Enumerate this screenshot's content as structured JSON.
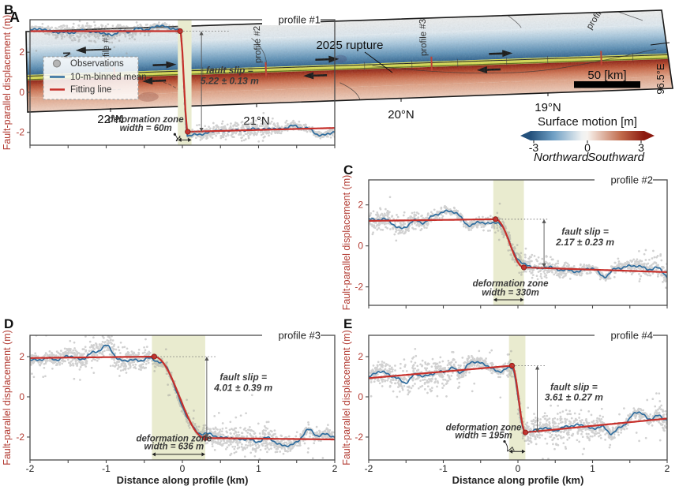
{
  "map": {
    "panel_label": "A",
    "north_arrow_label": "N",
    "rupture_label": "2025 rupture",
    "profile_labels": [
      "profile #1",
      "profile #2",
      "profile #3",
      "profile #4"
    ],
    "latitude_labels": [
      "22°N",
      "21°N",
      "20°N",
      "19°N"
    ],
    "longitude_label": "96.5°E",
    "scalebar_label": "50 [km]",
    "colorbar": {
      "title": "Surface motion [m]",
      "tick_labels": [
        "-3",
        "0",
        "3"
      ],
      "left_caption": "Northward",
      "right_caption": "Southward",
      "negative_color": "#24517c",
      "positive_color": "#8c1a10"
    }
  },
  "axes": {
    "ylabel": "Fault-parallel displacement (m)",
    "xlabel": "Distance along profile (km)"
  },
  "legend": {
    "items": [
      {
        "marker": "circle",
        "label": "Observations"
      },
      {
        "marker": "line-blue",
        "label": "10-m-binned mean"
      },
      {
        "marker": "line-red",
        "label": "Fitting line"
      }
    ]
  },
  "colors": {
    "fit_line": "#c62f2a",
    "binned_line": "#2f6d9e",
    "observations": "#9a9a9a",
    "zone_band": "#e9ebcf",
    "axis_red": "#b23b32",
    "frame": "#4a4a4a",
    "annotation_text": "#3a3a3a",
    "rupture_band": "#d6da52"
  },
  "chart_data": [
    {
      "panel_label": "B",
      "title": "profile #1",
      "type": "scatter",
      "xlim": [
        -2,
        2
      ],
      "ylim": [
        -2.64,
        3.62
      ],
      "yticks": [
        2,
        0,
        -2
      ],
      "xticks": [
        -2,
        -1,
        0,
        1,
        2
      ],
      "show_x_labels": false,
      "has_legend": true,
      "fault_slip_m": 5.22,
      "fault_slip_err_m": 0.13,
      "deformation_width_m": 60,
      "slip_text": [
        "fault slip =",
        "5.22 ± 0.13 m"
      ],
      "deform_text": [
        "deformation zone",
        "width = 60m"
      ],
      "fit": {
        "left_start": 3.05,
        "left_end": 3.05,
        "ramp_x0": -0.03,
        "ramp_x1": 0.07,
        "right_start": -1.97,
        "right_end": -1.78
      },
      "zone_km": [
        -0.06,
        0.12
      ],
      "noise": {
        "seed": 11,
        "wiggle": 0.2,
        "amp": 0.15,
        "outlier": 0.012,
        "n": 1300
      },
      "annot": {
        "vline_x": 0.25,
        "helper_to": 0.62,
        "slip_tx": 0.62,
        "slip_ty1": 0.95,
        "slip_ty2": 0.42,
        "def_tx": -0.48,
        "def_ty1": -1.5,
        "def_ty2": -1.93,
        "def_arrow_y": -2.38,
        "leader": [
          [
            -0.1,
            -2.1
          ],
          [
            -0.02,
            -2.36
          ]
        ]
      }
    },
    {
      "panel_label": "C",
      "title": "profile #2",
      "type": "scatter",
      "xlim": [
        -2,
        2
      ],
      "ylim": [
        -2.9,
        3.22
      ],
      "yticks": [
        2,
        0,
        -2
      ],
      "xticks": [
        -2,
        -1,
        0,
        1,
        2
      ],
      "show_x_labels": false,
      "has_legend": false,
      "fault_slip_m": 2.17,
      "fault_slip_err_m": 0.23,
      "deformation_width_m": 330,
      "slip_text": [
        "fault slip =",
        "2.17 ± 0.23 m"
      ],
      "deform_text": [
        "deformation zone",
        "width = 330m"
      ],
      "fit": {
        "left_start": 1.22,
        "left_end": 1.3,
        "ramp_x0": -0.3,
        "ramp_x1": 0.08,
        "right_start": -1.05,
        "right_end": -1.28
      },
      "zone_km": [
        -0.33,
        0.08
      ],
      "noise": {
        "seed": 23,
        "wiggle": 0.3,
        "amp": 0.18,
        "outlier": 0.015,
        "n": 1300
      },
      "annot": {
        "vline_x": 0.35,
        "helper_to": 0.42,
        "slip_tx": 0.9,
        "slip_ty1": 0.55,
        "slip_ty2": 0.02,
        "def_tx": -0.1,
        "def_ty1": -1.98,
        "def_ty2": -2.42,
        "def_arrow_y": -2.63,
        "leader": null
      }
    },
    {
      "panel_label": "D",
      "title": "profile #3",
      "type": "scatter",
      "xlim": [
        -2,
        2
      ],
      "ylim": [
        -3.14,
        3.06
      ],
      "yticks": [
        2,
        0,
        -2
      ],
      "xticks": [
        -2,
        -1,
        0,
        1,
        2
      ],
      "show_x_labels": true,
      "has_legend": false,
      "fault_slip_m": 4.01,
      "fault_slip_err_m": 0.39,
      "deformation_width_m": 636,
      "slip_text": [
        "fault slip =",
        "4.01 ± 0.39 m"
      ],
      "deform_text": [
        "deformation zone",
        "width = 636 m"
      ],
      "fit": {
        "left_start": 1.93,
        "left_end": 2.0,
        "ramp_x0": -0.37,
        "ramp_x1": 0.3,
        "right_start": -2.05,
        "right_end": -2.12
      },
      "zone_km": [
        -0.4,
        0.3
      ],
      "noise": {
        "seed": 37,
        "wiggle": 0.3,
        "amp": 0.24,
        "outlier": 0.05,
        "n": 1500
      },
      "annot": {
        "vline_x": 0.32,
        "helper_to": 0.45,
        "slip_tx": 0.8,
        "slip_ty1": 0.82,
        "slip_ty2": 0.3,
        "def_tx": -0.11,
        "def_ty1": -2.22,
        "def_ty2": -2.62,
        "def_arrow_y": -2.86,
        "leader": null
      }
    },
    {
      "panel_label": "E",
      "title": "profile #4",
      "type": "scatter",
      "xlim": [
        -2,
        2
      ],
      "ylim": [
        -3.14,
        3.06
      ],
      "yticks": [
        2,
        0,
        -2
      ],
      "xticks": [
        -2,
        -1,
        0,
        1,
        2
      ],
      "show_x_labels": true,
      "has_legend": false,
      "fault_slip_m": 3.61,
      "fault_slip_err_m": 0.27,
      "deformation_width_m": 195,
      "slip_text": [
        "fault slip =",
        "3.61 ± 0.27 m"
      ],
      "deform_text": [
        "deformation zone",
        "width = 195m"
      ],
      "fit": {
        "left_start": 0.93,
        "left_end": 1.55,
        "ramp_x0": -0.08,
        "ramp_x1": 0.1,
        "right_start": -1.77,
        "right_end": -1.08
      },
      "zone_km": [
        -0.12,
        0.1
      ],
      "noise": {
        "seed": 53,
        "wiggle": 0.3,
        "amp": 0.26,
        "outlier": 0.045,
        "n": 1500
      },
      "annot": {
        "vline_x": 0.26,
        "helper_to": 0.38,
        "slip_tx": 0.75,
        "slip_ty1": 0.34,
        "slip_ty2": -0.18,
        "def_tx": -0.46,
        "def_ty1": -1.66,
        "def_ty2": -2.06,
        "def_arrow_y": -2.72,
        "leader": [
          [
            -0.18,
            -2.22
          ],
          [
            -0.05,
            -2.68
          ]
        ]
      }
    }
  ]
}
